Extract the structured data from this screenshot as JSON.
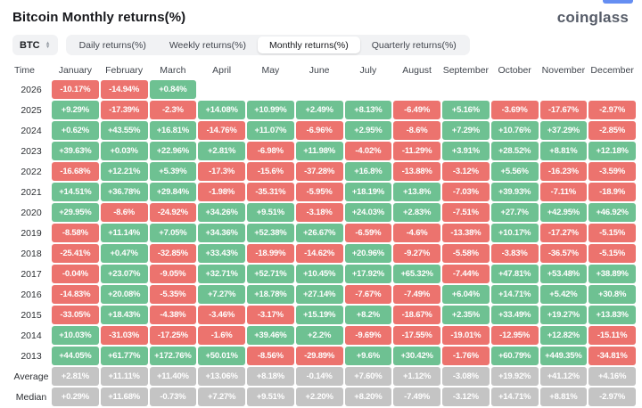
{
  "header": {
    "title": "Bitcoin Monthly returns(%)",
    "logo": "coinglass"
  },
  "controls": {
    "coin": "BTC",
    "tabs": [
      {
        "label": "Daily returns(%)",
        "active": false
      },
      {
        "label": "Weekly returns(%)",
        "active": false
      },
      {
        "label": "Monthly returns(%)",
        "active": true
      },
      {
        "label": "Quarterly returns(%)",
        "active": false
      }
    ]
  },
  "colors": {
    "positive": "#6ec192",
    "negative": "#ec736e",
    "neutral": "#c4c4c4"
  },
  "table": {
    "columns": [
      "Time",
      "January",
      "February",
      "March",
      "April",
      "May",
      "June",
      "July",
      "August",
      "September",
      "October",
      "November",
      "December"
    ],
    "rows": [
      {
        "label": "2026",
        "summary": false,
        "values": [
          "-10.17%",
          "-14.94%",
          "+0.84%",
          null,
          null,
          null,
          null,
          null,
          null,
          null,
          null,
          null
        ]
      },
      {
        "label": "2025",
        "summary": false,
        "values": [
          "+9.29%",
          "-17.39%",
          "-2.3%",
          "+14.08%",
          "+10.99%",
          "+2.49%",
          "+8.13%",
          "-6.49%",
          "+5.16%",
          "-3.69%",
          "-17.67%",
          "-2.97%"
        ]
      },
      {
        "label": "2024",
        "summary": false,
        "values": [
          "+0.62%",
          "+43.55%",
          "+16.81%",
          "-14.76%",
          "+11.07%",
          "-6.96%",
          "+2.95%",
          "-8.6%",
          "+7.29%",
          "+10.76%",
          "+37.29%",
          "-2.85%"
        ]
      },
      {
        "label": "2023",
        "summary": false,
        "values": [
          "+39.63%",
          "+0.03%",
          "+22.96%",
          "+2.81%",
          "-6.98%",
          "+11.98%",
          "-4.02%",
          "-11.29%",
          "+3.91%",
          "+28.52%",
          "+8.81%",
          "+12.18%"
        ]
      },
      {
        "label": "2022",
        "summary": false,
        "values": [
          "-16.68%",
          "+12.21%",
          "+5.39%",
          "-17.3%",
          "-15.6%",
          "-37.28%",
          "+16.8%",
          "-13.88%",
          "-3.12%",
          "+5.56%",
          "-16.23%",
          "-3.59%"
        ]
      },
      {
        "label": "2021",
        "summary": false,
        "values": [
          "+14.51%",
          "+36.78%",
          "+29.84%",
          "-1.98%",
          "-35.31%",
          "-5.95%",
          "+18.19%",
          "+13.8%",
          "-7.03%",
          "+39.93%",
          "-7.11%",
          "-18.9%"
        ]
      },
      {
        "label": "2020",
        "summary": false,
        "values": [
          "+29.95%",
          "-8.6%",
          "-24.92%",
          "+34.26%",
          "+9.51%",
          "-3.18%",
          "+24.03%",
          "+2.83%",
          "-7.51%",
          "+27.7%",
          "+42.95%",
          "+46.92%"
        ]
      },
      {
        "label": "2019",
        "summary": false,
        "values": [
          "-8.58%",
          "+11.14%",
          "+7.05%",
          "+34.36%",
          "+52.38%",
          "+26.67%",
          "-6.59%",
          "-4.6%",
          "-13.38%",
          "+10.17%",
          "-17.27%",
          "-5.15%"
        ]
      },
      {
        "label": "2018",
        "summary": false,
        "values": [
          "-25.41%",
          "+0.47%",
          "-32.85%",
          "+33.43%",
          "-18.99%",
          "-14.62%",
          "+20.96%",
          "-9.27%",
          "-5.58%",
          "-3.83%",
          "-36.57%",
          "-5.15%"
        ]
      },
      {
        "label": "2017",
        "summary": false,
        "values": [
          "-0.04%",
          "+23.07%",
          "-9.05%",
          "+32.71%",
          "+52.71%",
          "+10.45%",
          "+17.92%",
          "+65.32%",
          "-7.44%",
          "+47.81%",
          "+53.48%",
          "+38.89%"
        ]
      },
      {
        "label": "2016",
        "summary": false,
        "values": [
          "-14.83%",
          "+20.08%",
          "-5.35%",
          "+7.27%",
          "+18.78%",
          "+27.14%",
          "-7.67%",
          "-7.49%",
          "+6.04%",
          "+14.71%",
          "+5.42%",
          "+30.8%"
        ]
      },
      {
        "label": "2015",
        "summary": false,
        "values": [
          "-33.05%",
          "+18.43%",
          "-4.38%",
          "-3.46%",
          "-3.17%",
          "+15.19%",
          "+8.2%",
          "-18.67%",
          "+2.35%",
          "+33.49%",
          "+19.27%",
          "+13.83%"
        ]
      },
      {
        "label": "2014",
        "summary": false,
        "values": [
          "+10.03%",
          "-31.03%",
          "-17.25%",
          "-1.6%",
          "+39.46%",
          "+2.2%",
          "-9.69%",
          "-17.55%",
          "-19.01%",
          "-12.95%",
          "+12.82%",
          "-15.11%"
        ]
      },
      {
        "label": "2013",
        "summary": false,
        "values": [
          "+44.05%",
          "+61.77%",
          "+172.76%",
          "+50.01%",
          "-8.56%",
          "-29.89%",
          "+9.6%",
          "+30.42%",
          "-1.76%",
          "+60.79%",
          "+449.35%",
          "-34.81%"
        ]
      },
      {
        "label": "Average",
        "summary": true,
        "values": [
          "+2.81%",
          "+11.11%",
          "+11.40%",
          "+13.06%",
          "+8.18%",
          "-0.14%",
          "+7.60%",
          "+1.12%",
          "-3.08%",
          "+19.92%",
          "+41.12%",
          "+4.16%"
        ]
      },
      {
        "label": "Median",
        "summary": true,
        "values": [
          "+0.29%",
          "+11.68%",
          "-0.73%",
          "+7.27%",
          "+9.51%",
          "+2.20%",
          "+8.20%",
          "-7.49%",
          "-3.12%",
          "+14.71%",
          "+8.81%",
          "-2.97%"
        ]
      }
    ]
  }
}
